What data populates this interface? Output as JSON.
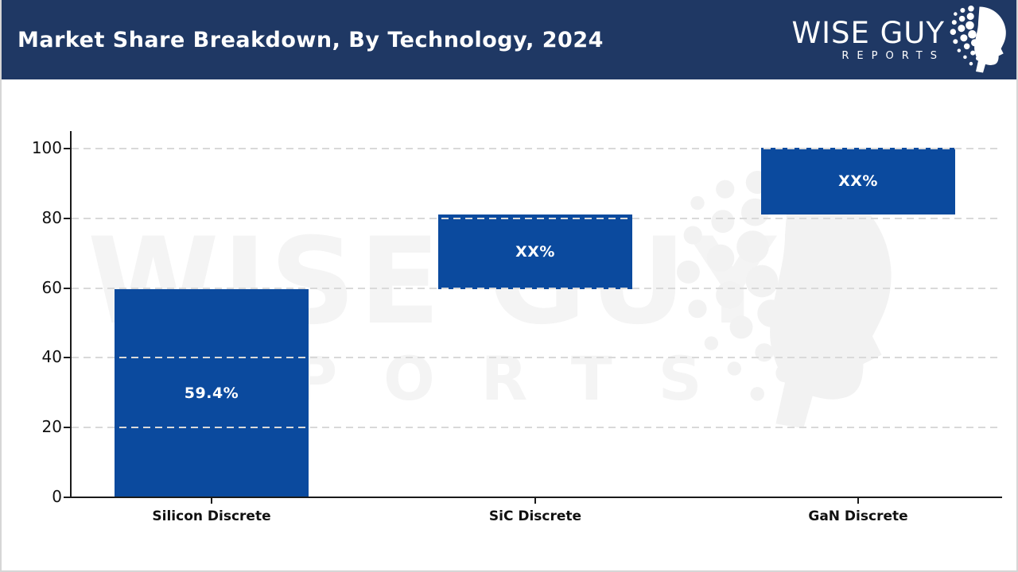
{
  "header": {
    "title": "Market Share Breakdown, By Technology, 2024",
    "bg_color": "#1f3864",
    "logo": {
      "line1": "WISE GUY",
      "line2": "REPORTS",
      "icon": "dotted-head-profile"
    }
  },
  "watermark": {
    "line1": "WISE GUY",
    "line2": "REPORTS",
    "icon": "dotted-head-profile"
  },
  "chart_data": {
    "type": "bar",
    "subtype": "waterfall",
    "title": "Market Share Breakdown, By Technology, 2024",
    "categories": [
      "Silicon Discrete",
      "SiC Discrete",
      "GaN Discrete"
    ],
    "segments": [
      {
        "category": "Silicon Discrete",
        "start": 0,
        "end": 59.4,
        "label": "59.4%"
      },
      {
        "category": "SiC Discrete",
        "start": 59.4,
        "end": 80.8,
        "label": "XX%"
      },
      {
        "category": "GaN Discrete",
        "start": 80.8,
        "end": 100,
        "label": "XX%"
      }
    ],
    "xlabel": "",
    "ylabel": "",
    "ylim": [
      0,
      105
    ],
    "yticks": [
      0,
      20,
      40,
      60,
      80,
      100
    ],
    "grid": "horizontal-dashed",
    "legend": "none",
    "bar_color": "#0b4a9e",
    "bar_label_color": "#ffffff",
    "axis_color": "#1a1a1a",
    "grid_color": "#d9d9d9"
  }
}
